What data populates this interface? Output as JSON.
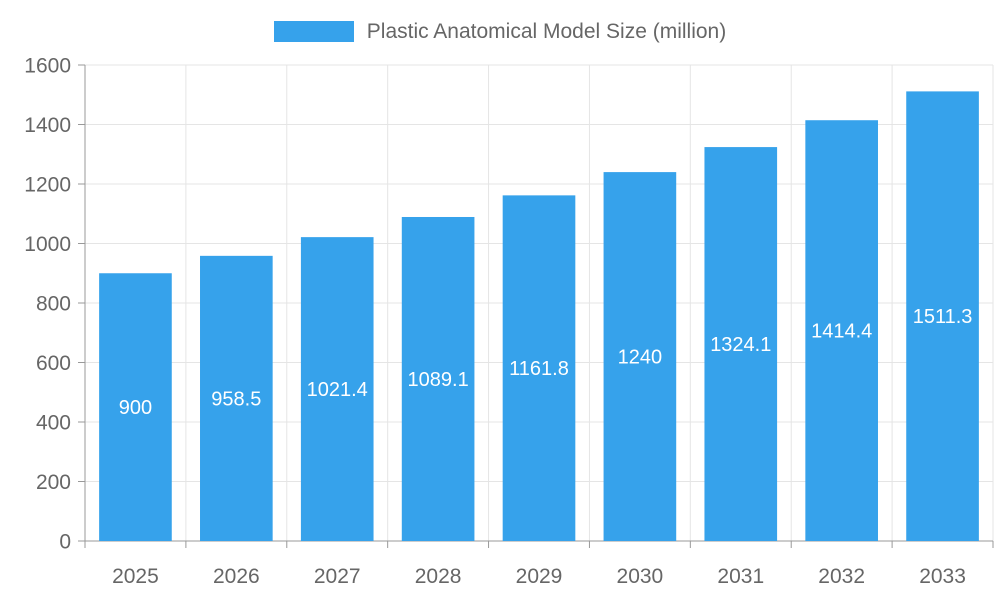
{
  "legend": {
    "label": "Plastic Anatomical Model Size (million)"
  },
  "colors": {
    "bar": "#36A2EB",
    "grid": "#E5E5E5",
    "axis_line": "#999999",
    "tick_text": "#666666",
    "value_label": "#FFFFFF",
    "background": "#FFFFFF"
  },
  "chart_data": {
    "type": "bar",
    "title": "Plastic Anatomical Model Size (million)",
    "categories": [
      "2025",
      "2026",
      "2027",
      "2028",
      "2029",
      "2030",
      "2031",
      "2032",
      "2033"
    ],
    "values": [
      900,
      958.5,
      1021.4,
      1089.1,
      1161.8,
      1240,
      1324.1,
      1414.4,
      1511.3
    ],
    "xlabel": "",
    "ylabel": "",
    "ylim": [
      0,
      1600
    ],
    "ytick_interval": 200,
    "yticks": [
      0,
      200,
      400,
      600,
      800,
      1000,
      1200,
      1400,
      1600
    ],
    "grid": true,
    "legend_position": "top",
    "value_label_position": "inside-center"
  }
}
